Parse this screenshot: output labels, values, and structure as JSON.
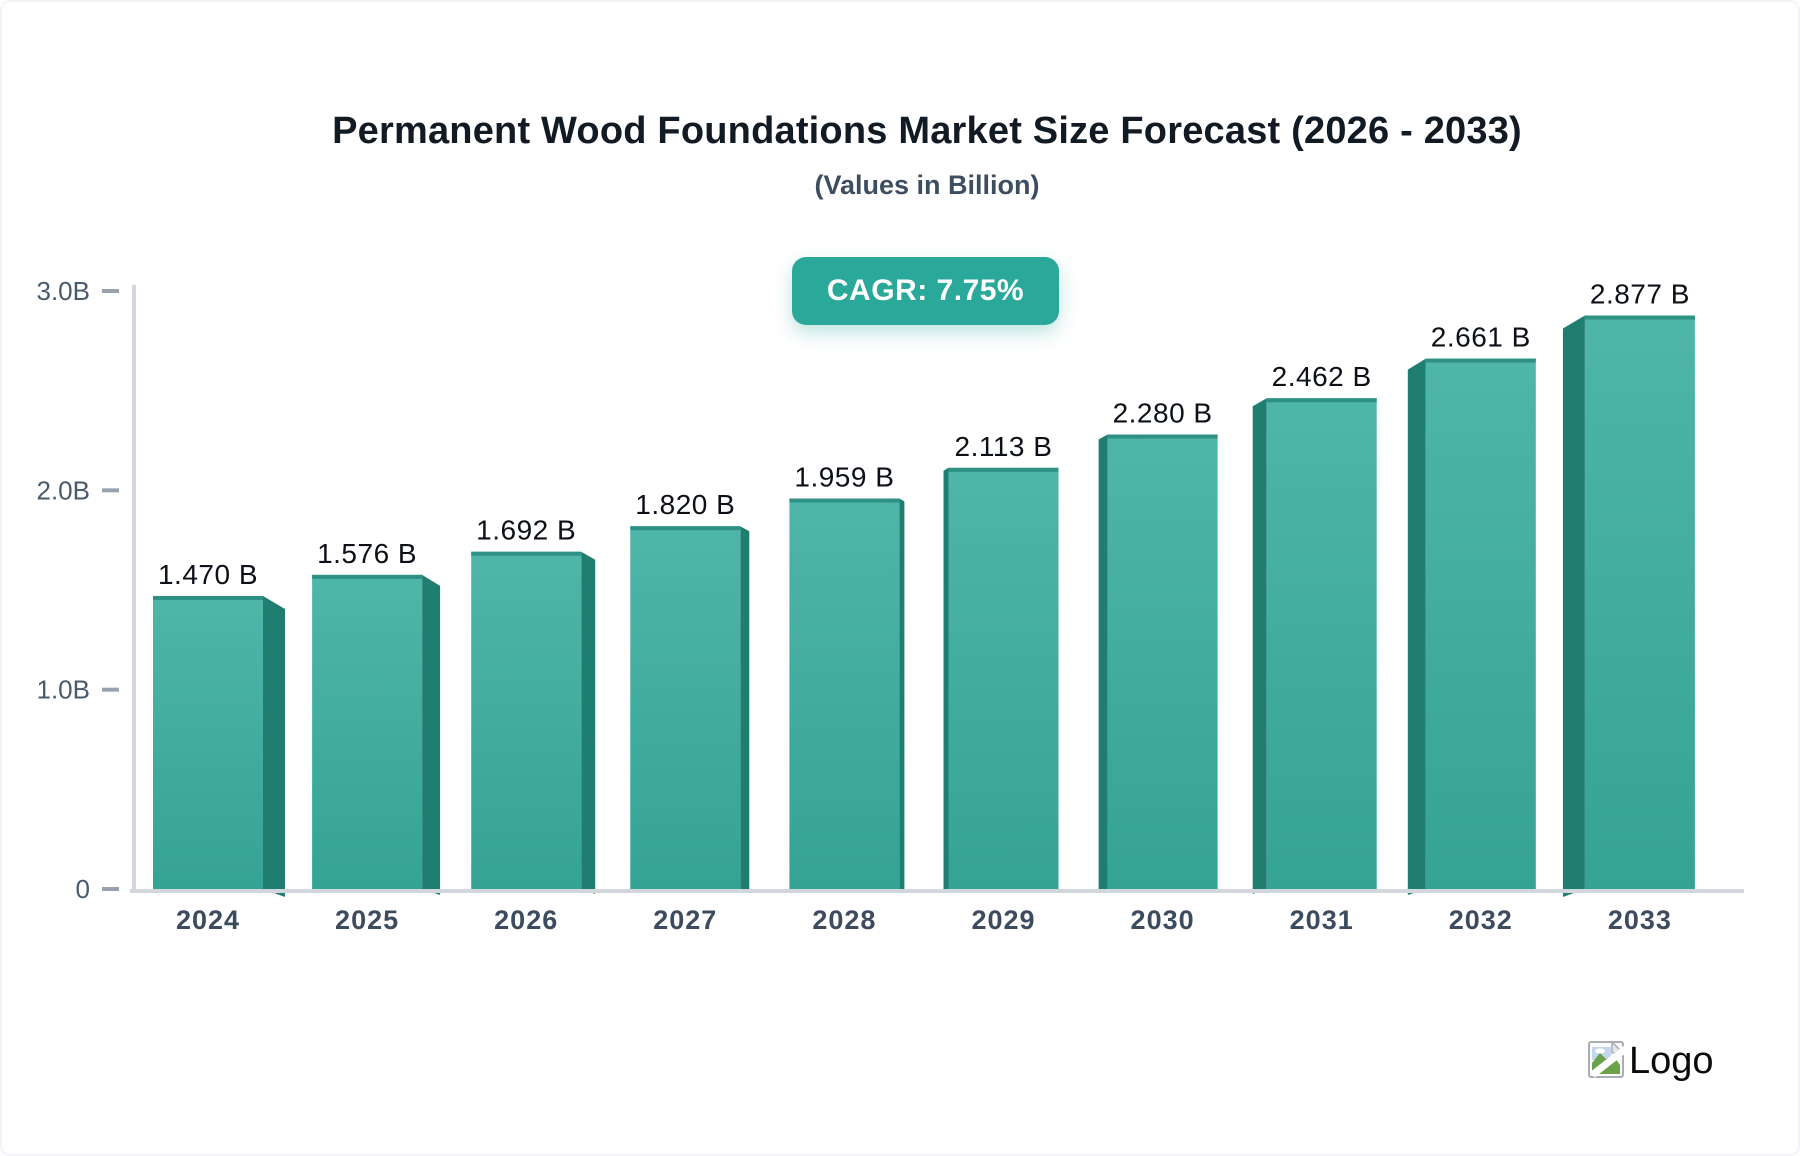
{
  "page": {
    "title": "Permanent Wood Foundations Market Size Forecast (2026 - 2033)",
    "subtitle": "(Values in Billion)",
    "cagr_badge": "CAGR: 7.75%",
    "logo_alt": "Logo"
  },
  "colors": {
    "bar_face_top": "#4fb6a8",
    "bar_face_bottom": "#35a394",
    "bar_side": "#1f7e6f",
    "bar_top_edge": "#2e9183",
    "badge_bg": "#2aa89a",
    "axis_line": "#d2d6dd",
    "tick": "#99a1ac",
    "y_label_color": "#4a5a6d",
    "x_label_color": "#3c4c5e",
    "value_label_color": "#0c1118"
  },
  "chart_data": {
    "type": "bar",
    "title": "Permanent Wood Foundations Market Size Forecast (2026 - 2033)",
    "subtitle": "(Values in Billion)",
    "cagr_label": "CAGR: 7.75%",
    "categories": [
      "2024",
      "2025",
      "2026",
      "2027",
      "2028",
      "2029",
      "2030",
      "2031",
      "2032",
      "2033"
    ],
    "values": [
      1.47,
      1.576,
      1.692,
      1.82,
      1.959,
      2.113,
      2.28,
      2.462,
      2.661,
      2.877
    ],
    "value_labels": [
      "1.470 B",
      "1.576 B",
      "1.692 B",
      "1.820 B",
      "1.959 B",
      "2.113 B",
      "2.280 B",
      "2.462 B",
      "2.661 B",
      "2.877 B"
    ],
    "unit": "Billion",
    "xlabel": "",
    "ylabel": "",
    "ylim": [
      0,
      3.0
    ],
    "y_ticks": [
      0,
      1.0,
      2.0,
      3.0
    ],
    "y_tick_labels": [
      "0",
      "1.0B",
      "2.0B",
      "3.0B"
    ],
    "grid": false,
    "legend": false
  }
}
